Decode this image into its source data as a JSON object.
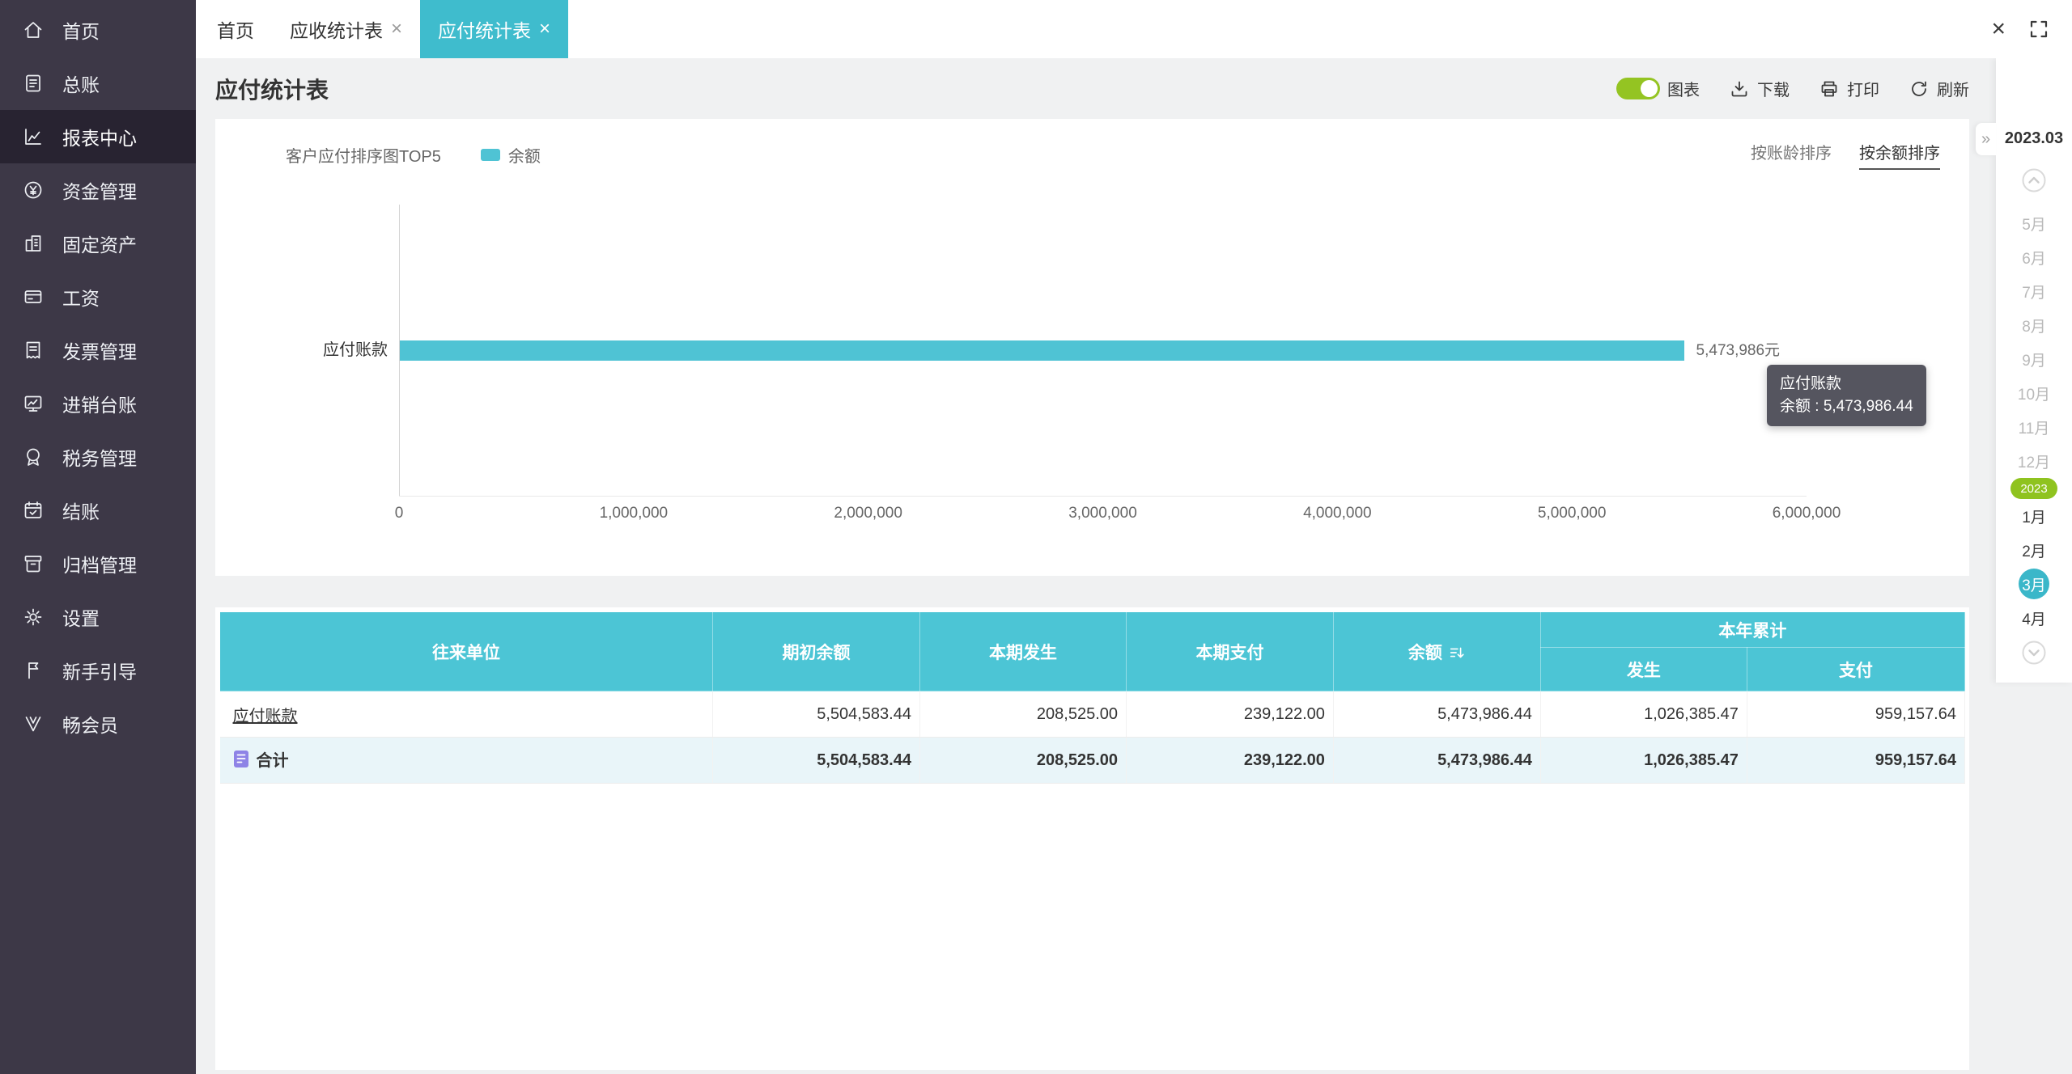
{
  "ui": {
    "close_glyph": "×"
  },
  "colors": {
    "accent_teal": "#3fbccd",
    "table_header_teal": "#4cc5d5",
    "bar_teal": "#4fc3d4",
    "toggle_green": "#94c422",
    "year_badge_green": "#8fc31f",
    "sidebar_bg": "#3d3847",
    "sidebar_active_bg": "#282331",
    "tooltip_bg": "#484853",
    "total_row_bg": "#e9f5f9"
  },
  "sidebar": {
    "items": [
      {
        "label": "首页"
      },
      {
        "label": "总账"
      },
      {
        "label": "报表中心",
        "active": true
      },
      {
        "label": "资金管理"
      },
      {
        "label": "固定资产"
      },
      {
        "label": "工资"
      },
      {
        "label": "发票管理"
      },
      {
        "label": "进销台账"
      },
      {
        "label": "税务管理"
      },
      {
        "label": "结账"
      },
      {
        "label": "归档管理"
      },
      {
        "label": "设置"
      },
      {
        "label": "新手引导"
      },
      {
        "label": "畅会员"
      }
    ]
  },
  "tabs": {
    "items": [
      {
        "label": "首页",
        "closable": false,
        "active": false
      },
      {
        "label": "应收统计表",
        "closable": true,
        "active": false
      },
      {
        "label": "应付统计表",
        "closable": true,
        "active": true
      }
    ]
  },
  "page": {
    "title": "应付统计表"
  },
  "toolbar": {
    "chart_label": "图表",
    "download_label": "下载",
    "print_label": "打印",
    "refresh_label": "刷新"
  },
  "chart": {
    "title": "客户应付排序图TOP5",
    "legend_label": "余额",
    "sort_by_age": "按账龄排序",
    "sort_by_balance": "按余额排序",
    "category_label": "应付账款",
    "value_label": "5,473,986元",
    "tooltip_line1": "应付账款",
    "tooltip_line2": "余额 : 5,473,986.44"
  },
  "chart_data": {
    "type": "bar",
    "orientation": "horizontal",
    "title": "客户应付排序图TOP5",
    "legend": [
      "余额"
    ],
    "categories": [
      "应付账款"
    ],
    "values": [
      5473986.44
    ],
    "xlim": [
      0,
      6000000
    ],
    "x_tick_labels": [
      "0",
      "1,000,000",
      "2,000,000",
      "3,000,000",
      "4,000,000",
      "5,000,000",
      "6,000,000"
    ],
    "unit": "元",
    "grid": false,
    "bar_color": "#4fc3d4",
    "legend_position": "top-left"
  },
  "table": {
    "headers": {
      "unit": "往来单位",
      "opening": "期初余额",
      "incurred": "本期发生",
      "paid": "本期支付",
      "balance": "余额",
      "ytd": "本年累计",
      "ytd_incurred": "发生",
      "ytd_paid": "支付"
    },
    "rows": [
      {
        "unit": "应付账款",
        "opening": "5,504,583.44",
        "incurred": "208,525.00",
        "paid": "239,122.00",
        "balance": "5,473,986.44",
        "ytd_incurred": "1,026,385.47",
        "ytd_paid": "959,157.64"
      }
    ],
    "total": {
      "label": "合计",
      "opening": "5,504,583.44",
      "incurred": "208,525.00",
      "paid": "239,122.00",
      "balance": "5,473,986.44",
      "ytd_incurred": "1,026,385.47",
      "ytd_paid": "959,157.64"
    }
  },
  "month_panel": {
    "current_period": "2023.03",
    "collapse_glyph": "»",
    "year_badge": "2023",
    "items": [
      {
        "label": "5月",
        "state": "disabled"
      },
      {
        "label": "6月",
        "state": "disabled"
      },
      {
        "label": "7月",
        "state": "disabled"
      },
      {
        "label": "8月",
        "state": "disabled"
      },
      {
        "label": "9月",
        "state": "disabled"
      },
      {
        "label": "10月",
        "state": "disabled"
      },
      {
        "label": "11月",
        "state": "disabled"
      },
      {
        "label": "12月",
        "state": "disabled"
      },
      {
        "label": "1月",
        "state": "enabled"
      },
      {
        "label": "2月",
        "state": "enabled"
      },
      {
        "label": "3月",
        "state": "active"
      },
      {
        "label": "4月",
        "state": "enabled"
      }
    ]
  }
}
